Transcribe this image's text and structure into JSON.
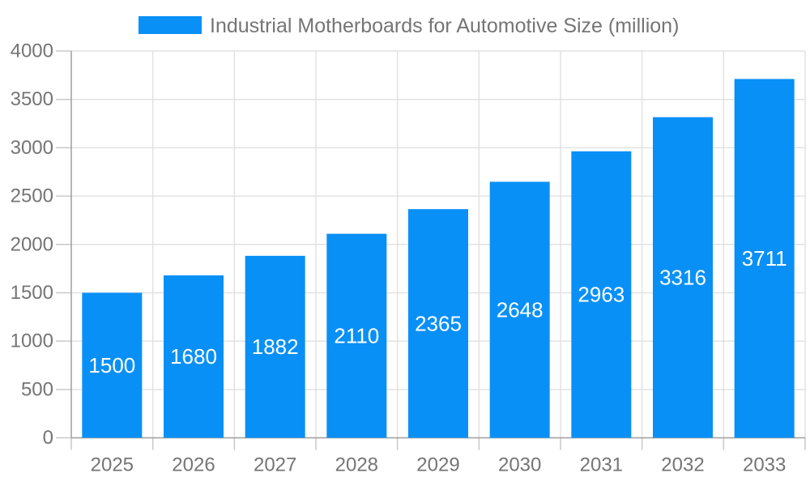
{
  "legend": {
    "series_label": "Industrial Motherboards for Automotive Size (million)"
  },
  "chart_data": {
    "type": "bar",
    "title": "Industrial Motherboards for Automotive Size (million)",
    "categories": [
      "2025",
      "2026",
      "2027",
      "2028",
      "2029",
      "2030",
      "2031",
      "2032",
      "2033"
    ],
    "values": [
      1500,
      1680,
      1882,
      2110,
      2365,
      2648,
      2963,
      3316,
      3711
    ],
    "xlabel": "",
    "ylabel": "",
    "ylim": [
      0,
      4000
    ],
    "yticks": [
      0,
      500,
      1000,
      1500,
      2000,
      2500,
      3000,
      3500,
      4000
    ],
    "bar_value_labels_visible": true,
    "grid": true,
    "legend_position": "top"
  },
  "colors": {
    "bar": "#0990F7",
    "bar_value_label": "#FFFFFF",
    "axis_text": "#757575",
    "legend_text": "#757575",
    "gridline": "#E2E2E2",
    "axis_line": "#9E9E9E",
    "tick_line": "#C9C9C9",
    "background": "#FFFFFF"
  }
}
